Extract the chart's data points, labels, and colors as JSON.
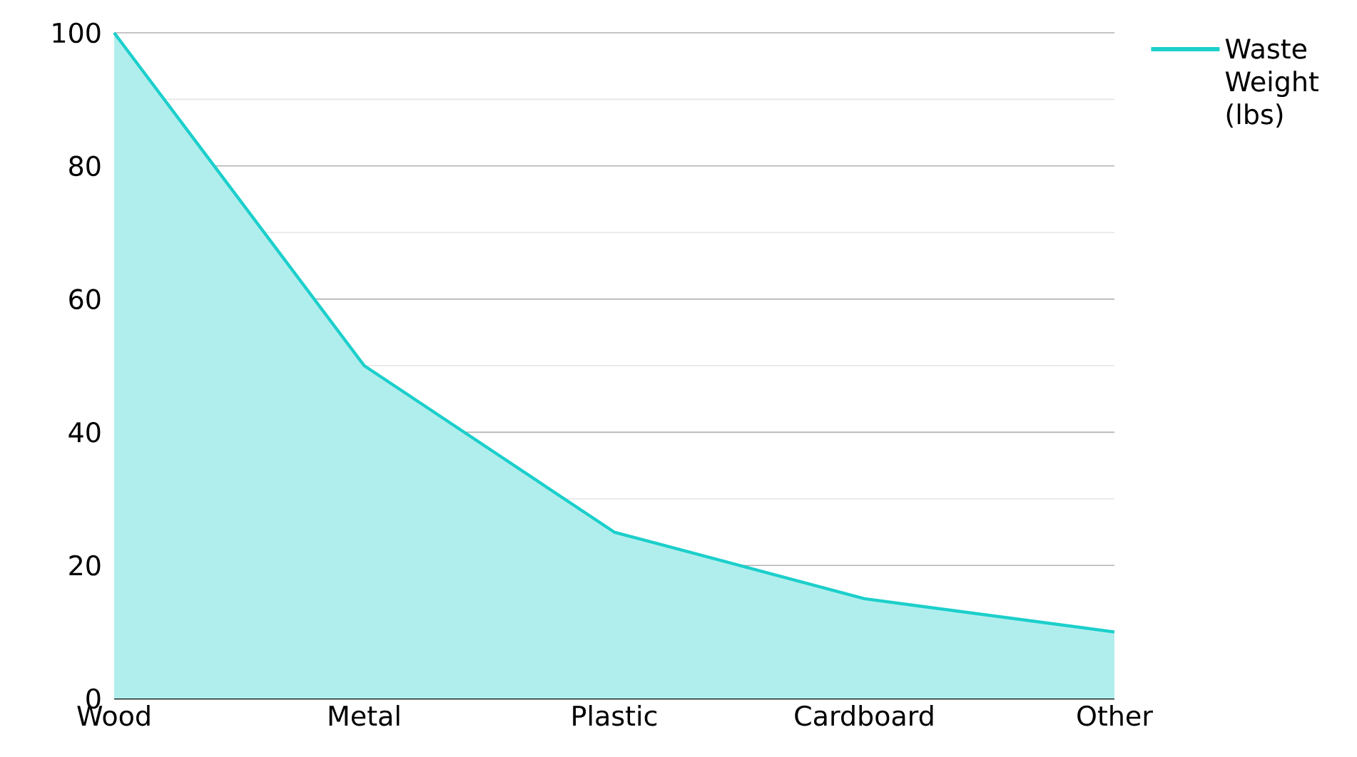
{
  "chart_data": {
    "type": "area",
    "categories": [
      "Wood",
      "Metal",
      "Plastic",
      "Cardboard",
      "Other"
    ],
    "series": [
      {
        "name": "Waste Weight (lbs)",
        "color": "#1ccfcb",
        "values": [
          100,
          50,
          25,
          15,
          10
        ]
      }
    ],
    "ylim": [
      0,
      100
    ],
    "yticks": [
      0,
      20,
      40,
      60,
      80,
      100
    ],
    "grid": "y",
    "legend": "top right",
    "marker": "none",
    "line_style": "solid"
  }
}
